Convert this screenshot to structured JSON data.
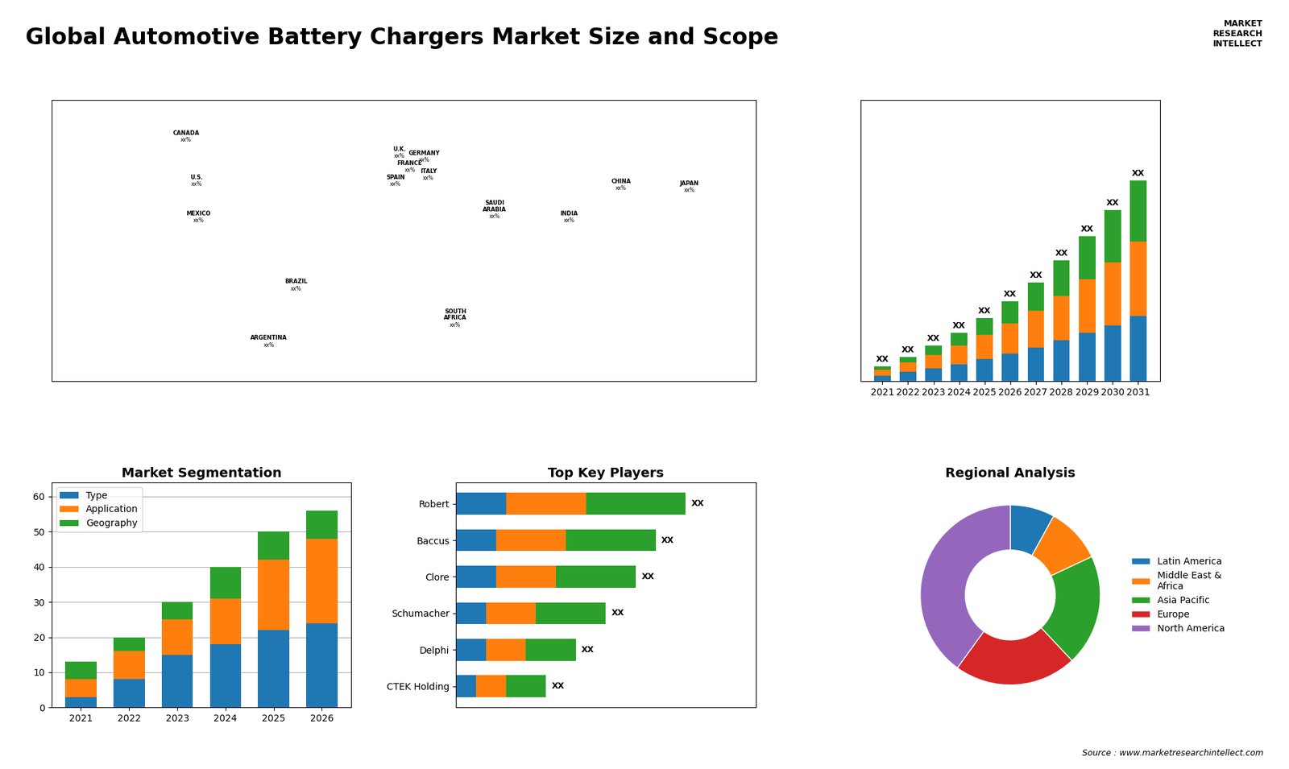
{
  "title": "Global Automotive Battery Chargers Market Size and Scope",
  "source": "Source : www.marketresearchintellect.com",
  "annotations": [
    "MARKET\nRESEARCH\nINTELLECT"
  ],
  "chart_data": [
    {
      "type": "map",
      "xlim": [
        -170,
        170
      ],
      "ylim": [
        -60,
        80
      ],
      "tick_labels": false,
      "annotations": [
        {
          "text": "CANADA",
          "subtext": "xx%",
          "x": -105,
          "y": 62
        },
        {
          "text": "U.S.",
          "subtext": "xx%",
          "x": -100,
          "y": 40
        },
        {
          "text": "MEXICO",
          "subtext": "xx%",
          "x": -99,
          "y": 22
        },
        {
          "text": "BRAZIL",
          "subtext": "xx%",
          "x": -52,
          "y": -12
        },
        {
          "text": "ARGENTINA",
          "subtext": "xx%",
          "x": -65,
          "y": -40
        },
        {
          "text": "U.K.",
          "subtext": "xx%",
          "x": -2,
          "y": 54
        },
        {
          "text": "FRANCE",
          "subtext": "xx%",
          "x": 3,
          "y": 47
        },
        {
          "text": "SPAIN",
          "subtext": "xx%",
          "x": -4,
          "y": 40
        },
        {
          "text": "GERMANY",
          "subtext": "xx%",
          "x": 10,
          "y": 52
        },
        {
          "text": "ITALY",
          "subtext": "xx%",
          "x": 12,
          "y": 43
        },
        {
          "text": "SAUDI\nARABIA",
          "subtext": "xx%",
          "x": 44,
          "y": 24
        },
        {
          "text": "SOUTH\nAFRICA",
          "subtext": "xx%",
          "x": 25,
          "y": -30
        },
        {
          "text": "CHINA",
          "subtext": "xx%",
          "x": 105,
          "y": 38
        },
        {
          "text": "INDIA",
          "subtext": "xx%",
          "x": 80,
          "y": 22
        },
        {
          "text": "JAPAN",
          "subtext": "xx%",
          "x": 138,
          "y": 37
        }
      ]
    },
    {
      "type": "bar",
      "stacked": true,
      "categories": [
        "2021",
        "2022",
        "2023",
        "2024",
        "2025",
        "2026",
        "2027",
        "2028",
        "2029",
        "2030",
        "2031"
      ],
      "series": [
        {
          "values": [
            3,
            5,
            7,
            9,
            12,
            15,
            18,
            22,
            26,
            30,
            35
          ]
        },
        {
          "values": [
            3,
            5,
            7,
            10,
            13,
            16,
            20,
            24,
            29,
            34,
            40
          ]
        },
        {
          "values": [
            2,
            3,
            5,
            7,
            9,
            12,
            15,
            19,
            23,
            28,
            33
          ]
        }
      ],
      "ylim": [
        0,
        151.2
      ],
      "tick_labels": "x",
      "data_labels": true,
      "value_labels": [
        "XX",
        "XX",
        "XX",
        "XX",
        "XX",
        "XX",
        "XX",
        "XX",
        "XX",
        "XX",
        "XX"
      ]
    },
    {
      "type": "bar",
      "title": "Market Segmentation",
      "stacked": true,
      "categories": [
        "2021",
        "2022",
        "2023",
        "2024",
        "2025",
        "2026"
      ],
      "series": [
        {
          "name": "Type",
          "values": [
            3,
            8,
            15,
            18,
            22,
            24
          ]
        },
        {
          "name": "Application",
          "values": [
            5,
            8,
            10,
            13,
            20,
            24
          ]
        },
        {
          "name": "Geography",
          "values": [
            5,
            4,
            5,
            9,
            8,
            8
          ]
        }
      ],
      "ylim": [
        0,
        64
      ],
      "yticks": [
        0,
        10,
        20,
        30,
        40,
        50,
        60
      ],
      "grid": true,
      "legend": "upper left"
    },
    {
      "type": "bar",
      "title": "Top Key Players",
      "orientation": "horizontal",
      "stacked": true,
      "categories": [
        "Robert",
        "Baccus",
        "Clore",
        "Schumacher",
        "Delphi",
        "CTEK Holding"
      ],
      "series": [
        {
          "values": [
            5,
            4,
            4,
            3,
            3,
            2
          ]
        },
        {
          "values": [
            8,
            7,
            6,
            5,
            4,
            3
          ]
        },
        {
          "values": [
            10,
            9,
            8,
            7,
            5,
            4
          ]
        }
      ],
      "xlim": [
        0,
        30
      ],
      "tick_labels": "y",
      "data_labels": true,
      "value_labels": [
        "XX",
        "XX",
        "XX",
        "XX",
        "XX",
        "XX"
      ]
    },
    {
      "type": "pie",
      "title": "Regional Analysis",
      "categories": [
        "Latin America",
        "Middle East &\nAfrica",
        "Asia Pacific",
        "Europe",
        "North America"
      ],
      "values": [
        8,
        10,
        20,
        22,
        40
      ],
      "legend": "center left"
    }
  ]
}
